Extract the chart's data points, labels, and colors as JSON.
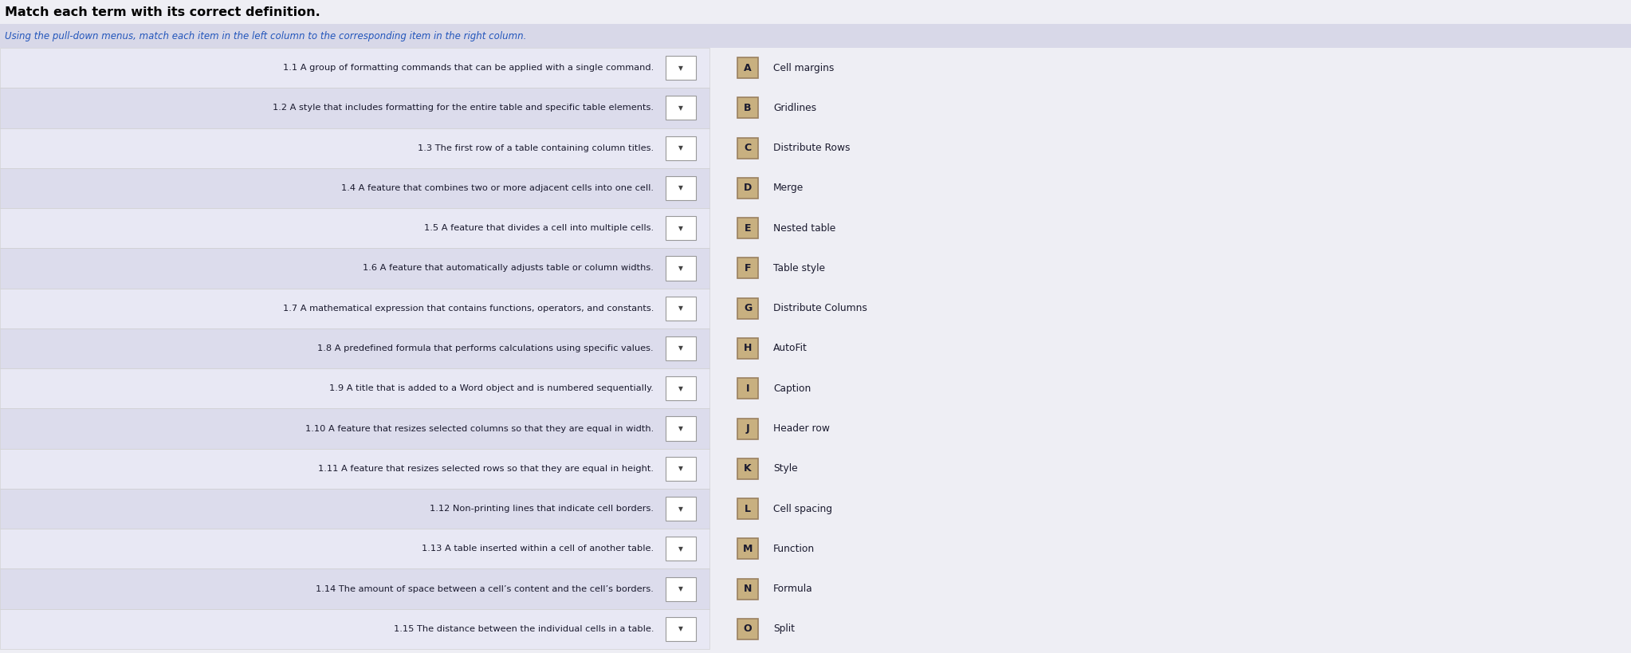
{
  "title": "Match each term with its correct definition.",
  "subtitle": "Using the pull-down menus, match each item in the left column to the corresponding item in the right column.",
  "bg_color": "#eeeef4",
  "header_bg": "#d8d8e8",
  "row_bg_light": "#e8e8f4",
  "row_bg_dark": "#dcdcec",
  "left_items": [
    "1.1 A group of formatting commands that can be applied with a single command.",
    "1.2 A style that includes formatting for the entire table and specific table elements.",
    "1.3 The first row of a table containing column titles.",
    "1.4 A feature that combines two or more adjacent cells into one cell.",
    "1.5 A feature that divides a cell into multiple cells.",
    "1.6 A feature that automatically adjusts table or column widths.",
    "1.7 A mathematical expression that contains functions, operators, and constants.",
    "1.8 A predefined formula that performs calculations using specific values.",
    "1.9 A title that is added to a Word object and is numbered sequentially.",
    "1.10 A feature that resizes selected columns so that they are equal in width.",
    "1.11 A feature that resizes selected rows so that they are equal in height.",
    "1.12 Non-printing lines that indicate cell borders.",
    "1.13 A table inserted within a cell of another table.",
    "1.14 The amount of space between a cell’s content and the cell’s borders.",
    "1.15 The distance between the individual cells in a table."
  ],
  "right_labels": [
    "A",
    "B",
    "C",
    "D",
    "E",
    "F",
    "G",
    "H",
    "I",
    "J",
    "K",
    "L",
    "M",
    "N",
    "O"
  ],
  "right_items": [
    "Cell margins",
    "Gridlines",
    "Distribute Rows",
    "Merge",
    "Nested table",
    "Table style",
    "Distribute Columns",
    "AutoFit",
    "Caption",
    "Header row",
    "Style",
    "Cell spacing",
    "Function",
    "Formula",
    "Split"
  ],
  "label_bg": "#c8b080",
  "label_border": "#9a8060",
  "dropdown_bg": "#ffffff",
  "dropdown_border": "#999999",
  "text_color": "#1a1a2e",
  "subtitle_color": "#2255bb",
  "title_color": "#000000",
  "figsize": [
    20.46,
    8.19
  ]
}
